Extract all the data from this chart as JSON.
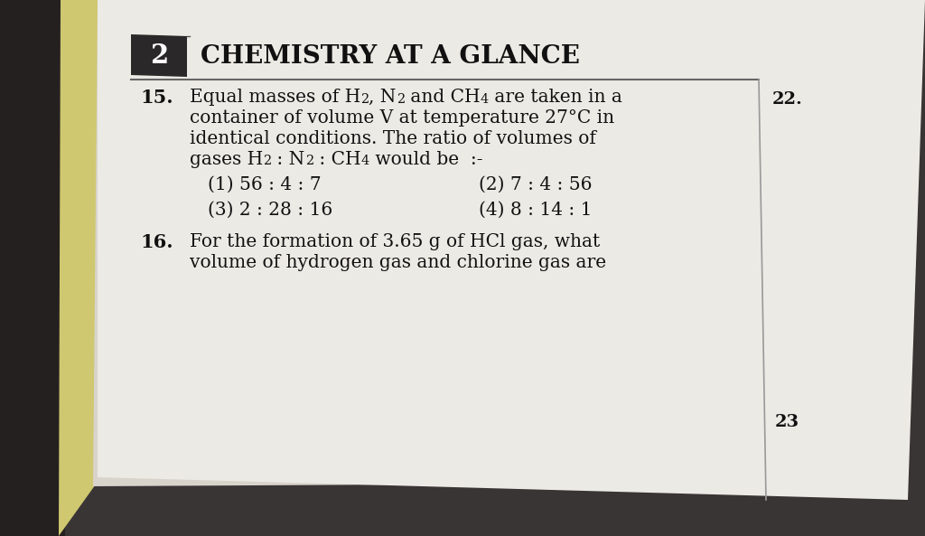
{
  "bg_color": "#3a3535",
  "page_color": "#eceae4",
  "page_color2": "#e0ddd6",
  "spine_color": "#cfc870",
  "dark_strip": "#252020",
  "chapter_box_color": "#2a2828",
  "chapter_num": "2",
  "header_text": "CHEMISTRY AT A GLANCE",
  "q15_num": "15.",
  "q15_line1_parts": [
    [
      "Equal masses of H",
      false
    ],
    [
      "2",
      true
    ],
    [
      ", N",
      false
    ],
    [
      "2",
      true
    ],
    [
      " and CH",
      false
    ],
    [
      "4",
      true
    ],
    [
      " are taken in a",
      false
    ]
  ],
  "q15_line2": "container of volume V at temperature 27°C in",
  "q15_line3": "identical conditions. The ratio of volumes of",
  "q15_line4_parts": [
    [
      "gases H",
      false
    ],
    [
      "2",
      true
    ],
    [
      " : N",
      false
    ],
    [
      "2",
      true
    ],
    [
      " : CH",
      false
    ],
    [
      "4",
      true
    ],
    [
      " would be  :-",
      false
    ]
  ],
  "opt1": "(1) 56 : 4 : 7",
  "opt2": "(2) 7 : 4 : 56",
  "opt3": "(3) 2 : 28 : 16",
  "opt4": "(4) 8 : 14 : 1",
  "q16_num": "16.",
  "q16_line1": "For the formation of 3.65 g of HCl gas, what",
  "q16_line2": "volume of hydrogen gas and chlorine gas are",
  "side_num1": "22.",
  "side_num2": "23",
  "text_color": "#111111",
  "header_fontsize": 20,
  "body_fontsize": 14.5,
  "option_fontsize": 14.5,
  "q_num_fontsize": 15,
  "chapter_num_fontsize": 21
}
